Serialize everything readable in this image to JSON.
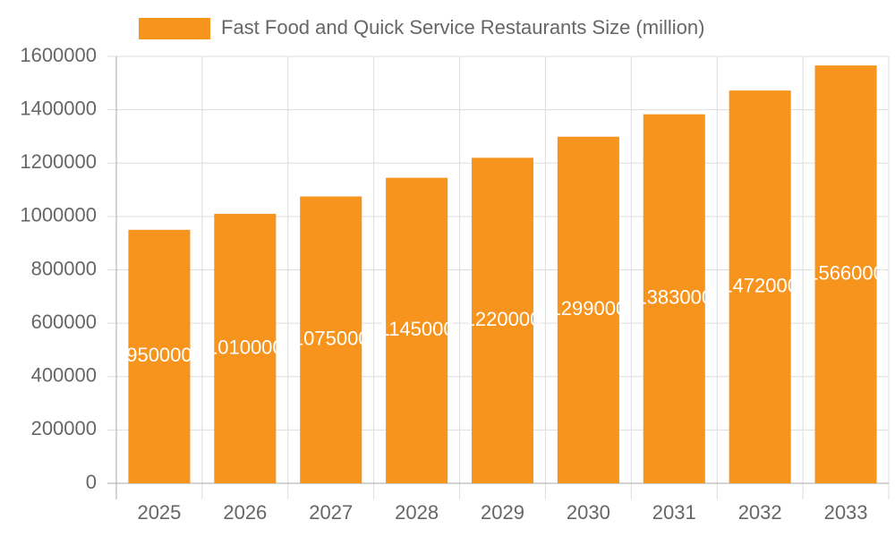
{
  "chart_data": {
    "type": "bar",
    "categories": [
      "2025",
      "2026",
      "2027",
      "2028",
      "2029",
      "2030",
      "2031",
      "2032",
      "2033"
    ],
    "series": [
      {
        "name": "Fast Food and Quick Service Restaurants Size (million)",
        "color": "#f7941d",
        "values": [
          950000,
          1010000,
          1075000,
          1145000,
          1220000,
          1299000,
          1383000,
          1472000,
          1566000
        ]
      }
    ],
    "ylim": [
      0,
      1600000
    ],
    "yticks": [
      0,
      200000,
      400000,
      600000,
      800000,
      1000000,
      1200000,
      1400000,
      1600000
    ],
    "grid": true,
    "legend": "top",
    "data_labels": true
  }
}
